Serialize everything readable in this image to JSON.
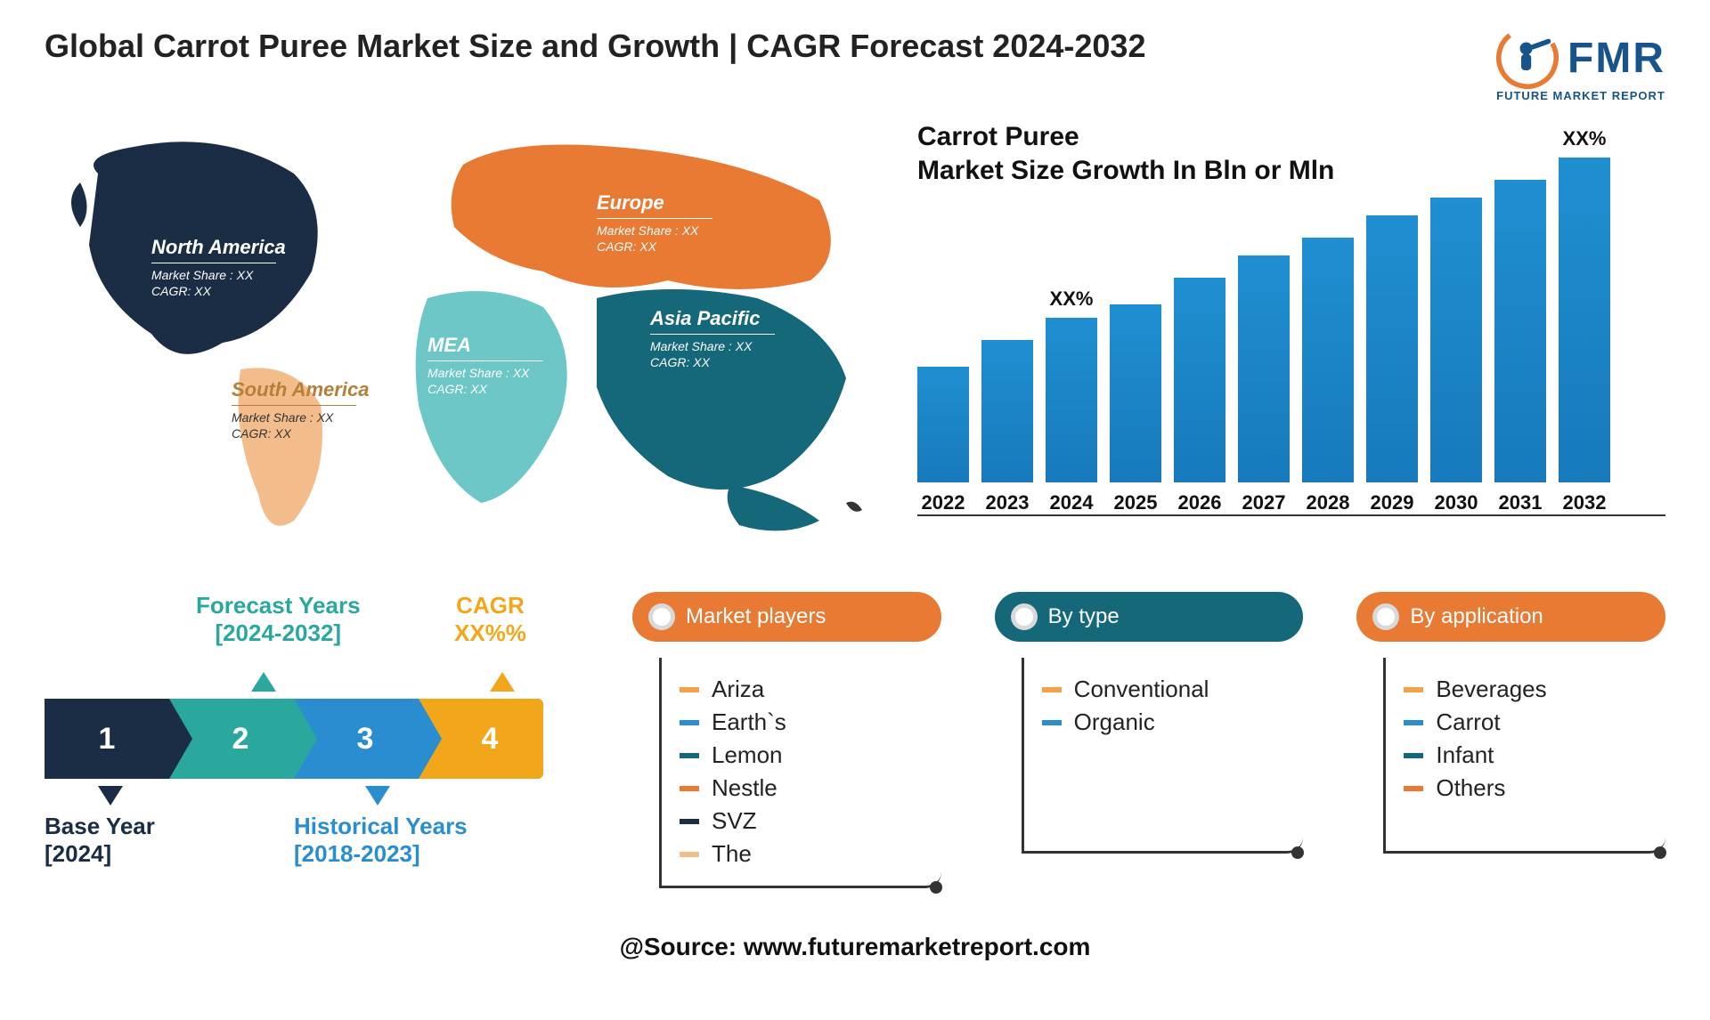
{
  "title": "Global Carrot Puree Market Size and Growth | CAGR Forecast 2024-2032",
  "logo": {
    "text": "FMR",
    "sub": "FUTURE MARKET REPORT"
  },
  "colors": {
    "navy": "#1a2d45",
    "teal": "#2aa89d",
    "blue": "#2a8dcf",
    "amber": "#f2a71b",
    "orange": "#e87a34",
    "tealdark": "#15677a",
    "lightteal": "#6dc7c7",
    "peach": "#f3bd8b",
    "bar": "#1f8fd1",
    "bardark": "#167abb"
  },
  "map": {
    "na": {
      "name": "North America",
      "share": "Market Share : XX",
      "cagr": "CAGR: XX"
    },
    "sa": {
      "name": "South America",
      "share": "Market Share : XX",
      "cagr": "CAGR: XX"
    },
    "eu": {
      "name": "Europe",
      "share": "Market Share : XX",
      "cagr": "CAGR: XX"
    },
    "mea": {
      "name": "MEA",
      "share": "Market Share : XX",
      "cagr": "CAGR: XX"
    },
    "ap": {
      "name": "Asia Pacific",
      "share": "Market Share : XX",
      "cagr": "CAGR: XX"
    }
  },
  "chart": {
    "title": "Carrot Puree\nMarket Size Growth In Bln or Mln",
    "years": [
      "2022",
      "2023",
      "2024",
      "2025",
      "2026",
      "2027",
      "2028",
      "2029",
      "2030",
      "2031",
      "2032"
    ],
    "heights": [
      130,
      160,
      185,
      200,
      230,
      255,
      275,
      300,
      320,
      340,
      365
    ],
    "value_labels": {
      "2024": "XX%",
      "2032": "XX%"
    }
  },
  "timeline": {
    "base": {
      "label": "Base Year",
      "value": "[2024]"
    },
    "forecast": {
      "label": "Forecast Years",
      "value": "[2024-2032]"
    },
    "historic": {
      "label": "Historical Years",
      "value": "[2018-2023]"
    },
    "cagr": {
      "label": "CAGR",
      "value": "XX%%"
    },
    "segments": [
      "1",
      "2",
      "3",
      "4"
    ]
  },
  "pills": {
    "players": {
      "title": "Market players",
      "color": "#e87a34",
      "items": [
        {
          "t": "Ariza",
          "c": "#f3a24a"
        },
        {
          "t": "Earth`s",
          "c": "#2a8dcf"
        },
        {
          "t": "Lemon",
          "c": "#15677a"
        },
        {
          "t": "Nestle",
          "c": "#e87a34"
        },
        {
          "t": "SVZ",
          "c": "#1a2d45"
        },
        {
          "t": "The",
          "c": "#f3bd8b"
        }
      ]
    },
    "type": {
      "title": "By type",
      "color": "#15677a",
      "items": [
        {
          "t": "Conventional",
          "c": "#f3a24a"
        },
        {
          "t": "Organic",
          "c": "#2a8dcf"
        }
      ]
    },
    "app": {
      "title": "By application",
      "color": "#e87a34",
      "items": [
        {
          "t": "Beverages",
          "c": "#f3a24a"
        },
        {
          "t": "Carrot",
          "c": "#2a8dcf"
        },
        {
          "t": "Infant",
          "c": "#15677a"
        },
        {
          "t": "Others",
          "c": "#e87a34"
        }
      ]
    }
  },
  "source": "@Source: www.futuremarketreport.com"
}
